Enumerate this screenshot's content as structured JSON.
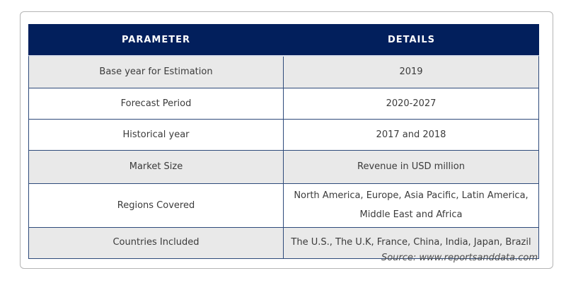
{
  "theme": {
    "header_bg": "#021f5c",
    "header_text": "#ffffff",
    "border_color": "#2e4a7a",
    "stripe_bg": "#e9e9e9",
    "body_text": "#3b3b3b",
    "card_border": "#b5b5b5",
    "source_text_color": "#4d4d4d"
  },
  "chart_data": {
    "type": "table",
    "columns": [
      "PARAMETER",
      "DETAILS"
    ],
    "rows": [
      {
        "parameter": "Base year for Estimation",
        "details": "2019"
      },
      {
        "parameter": "Forecast Period",
        "details": "2020-2027"
      },
      {
        "parameter": "Historical year",
        "details": "2017 and 2018"
      },
      {
        "parameter": "Market Size",
        "details": "Revenue in USD million"
      },
      {
        "parameter": "Regions Covered",
        "details": "North America, Europe, Asia Pacific, Latin America,\nMiddle East and Africa"
      },
      {
        "parameter": "Countries Included",
        "details": "The U.S., The  U.K, France, China, India, Japan, Brazil"
      }
    ]
  },
  "footer": {
    "source": "Source: www.reportsanddata.com"
  }
}
